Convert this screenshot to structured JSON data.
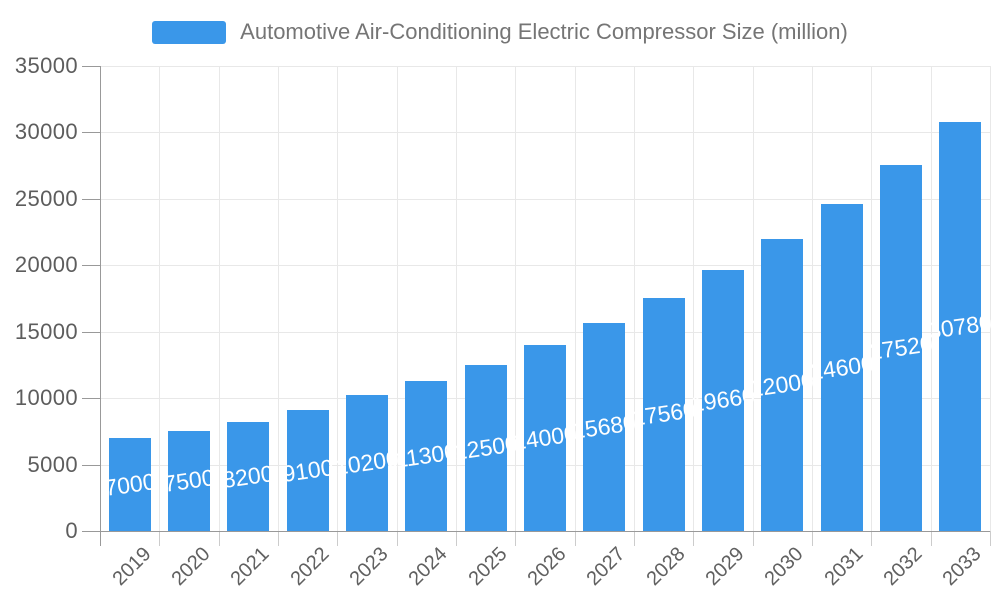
{
  "chart_data": {
    "type": "bar",
    "series_name": "Automotive Air-Conditioning Electric Compressor Size (million)",
    "categories": [
      "2019",
      "2020",
      "2021",
      "2022",
      "2023",
      "2024",
      "2025",
      "2026",
      "2027",
      "2028",
      "2029",
      "2030",
      "2031",
      "2032",
      "2033"
    ],
    "values": [
      7000,
      7500,
      8200,
      9100,
      10200,
      11300,
      12500,
      14000,
      15680,
      17560,
      19660,
      22000,
      24600,
      27520,
      30780
    ],
    "title": "Automotive Air-Conditioning Electric Compressor Size (million)",
    "xlabel": "",
    "ylabel": "",
    "ylim": [
      0,
      35000
    ],
    "yticks": [
      0,
      5000,
      10000,
      15000,
      20000,
      25000,
      30000,
      35000
    ],
    "grid": "on",
    "legend_position": "top",
    "bar_color": "#3a97e9",
    "bar_label_color": "#ffffff",
    "legend_text_color": "#757575",
    "axis_label_color": "#606060",
    "gridline_color": "#e8e8e8",
    "axis_line_color": "#999999"
  }
}
